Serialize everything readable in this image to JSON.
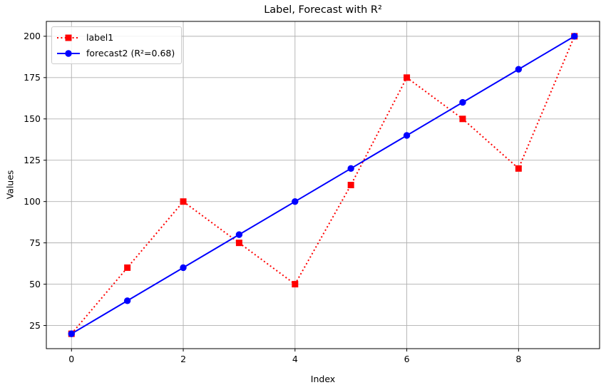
{
  "chart_data": {
    "type": "line",
    "title": "Label, Forecast with R²",
    "xlabel": "Index",
    "ylabel": "Values",
    "x": [
      0,
      1,
      2,
      3,
      4,
      5,
      6,
      7,
      8,
      9
    ],
    "series": [
      {
        "name": "label1",
        "values": [
          20,
          60,
          100,
          75,
          50,
          110,
          175,
          150,
          120,
          200
        ],
        "color": "#ff0000",
        "line_style": "dotted",
        "marker": "square"
      },
      {
        "name": "forecast2 (R²=0.68)",
        "values": [
          20,
          40,
          60,
          80,
          100,
          120,
          140,
          160,
          180,
          200
        ],
        "color": "#0000ff",
        "line_style": "solid",
        "marker": "circle"
      }
    ],
    "xticks": [
      0,
      2,
      4,
      6,
      8
    ],
    "yticks": [
      25,
      50,
      75,
      100,
      125,
      150,
      175,
      200
    ],
    "xlim": [
      -0.45,
      9.45
    ],
    "ylim": [
      11,
      209
    ],
    "grid": true,
    "grid_color": "#b0b0b0",
    "axis_color": "#000000",
    "background": "#ffffff",
    "legend_position": "upper left"
  }
}
